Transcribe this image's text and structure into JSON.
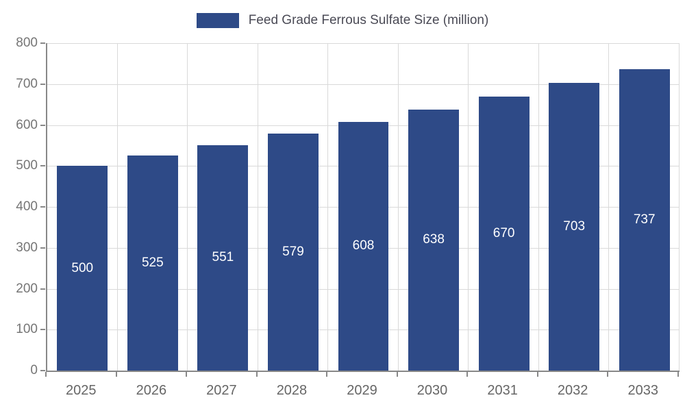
{
  "legend": {
    "label": "Feed Grade Ferrous Sulfate Size (million)"
  },
  "chart_data": {
    "type": "bar",
    "title": "Feed Grade Ferrous Sulfate Size (million)",
    "categories": [
      "2025",
      "2026",
      "2027",
      "2028",
      "2029",
      "2030",
      "2031",
      "2032",
      "2033"
    ],
    "values": [
      500,
      525,
      551,
      579,
      608,
      638,
      670,
      703,
      737
    ],
    "xlabel": "",
    "ylabel": "",
    "ylim": [
      0,
      800
    ],
    "ytick_step": 100,
    "grid": true,
    "legend_position": "top",
    "bar_color": "#2e4a87",
    "bar_label_color": "#ffffff",
    "axis_color": "#888888",
    "grid_color": "#d9d9d9",
    "tick_label_color": "#757575"
  }
}
